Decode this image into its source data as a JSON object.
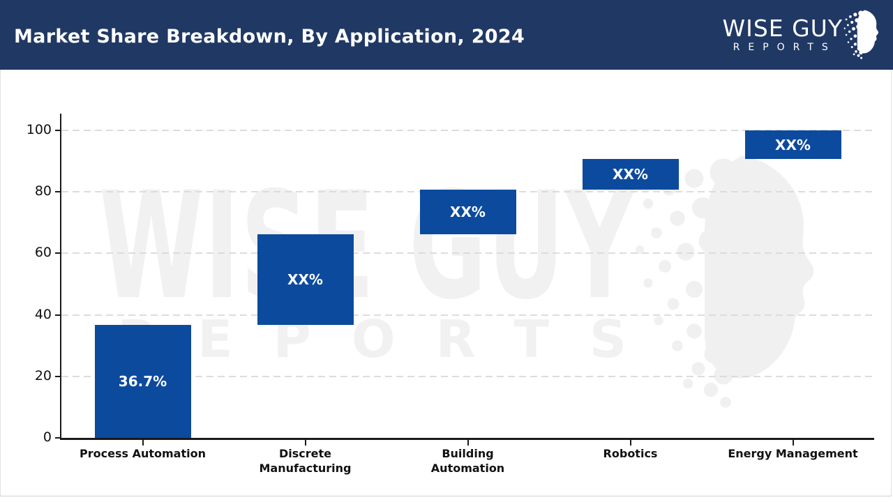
{
  "header": {
    "title": "Market Share Breakdown, By Application, 2024",
    "logo": {
      "line1": "WISE GUY",
      "line2": "REPORTS"
    },
    "background": "#203864"
  },
  "watermark": {
    "line1": "WISE GUY",
    "line2": "REPORTS"
  },
  "chart_data": {
    "type": "bar",
    "subtype": "waterfall",
    "title": "Market Share Breakdown, By Application, 2024",
    "categories": [
      "Process Automation",
      "Discrete Manufacturing",
      "Building Automation",
      "Robotics",
      "Energy Management"
    ],
    "category_lines": [
      [
        "Process Automation"
      ],
      [
        "Discrete",
        "Manufacturing"
      ],
      [
        "Building",
        "Automation"
      ],
      [
        "Robotics"
      ],
      [
        "Energy Management"
      ]
    ],
    "segments": [
      {
        "category": "Process Automation",
        "start": 0,
        "end": 36.7,
        "label": "36.7%"
      },
      {
        "category": "Discrete Manufacturing",
        "start": 36.7,
        "end": 66.1,
        "label": "XX%"
      },
      {
        "category": "Building Automation",
        "start": 66.1,
        "end": 80.8,
        "label": "XX%"
      },
      {
        "category": "Robotics",
        "start": 80.8,
        "end": 90.7,
        "label": "XX%"
      },
      {
        "category": "Energy Management",
        "start": 90.7,
        "end": 100,
        "label": "XX%"
      }
    ],
    "xlabel": "",
    "ylabel": "",
    "ylim": [
      0,
      100
    ],
    "yticks": [
      0,
      20,
      40,
      60,
      80,
      100
    ],
    "grid": true,
    "legend": false,
    "colors": {
      "bar": "#0c4a9e",
      "bar_label": "#ffffff",
      "axis": "#1a1a1a",
      "gridline": "#dcdcdc",
      "header_bg": "#203864",
      "watermark": "#f0f0f0"
    }
  }
}
